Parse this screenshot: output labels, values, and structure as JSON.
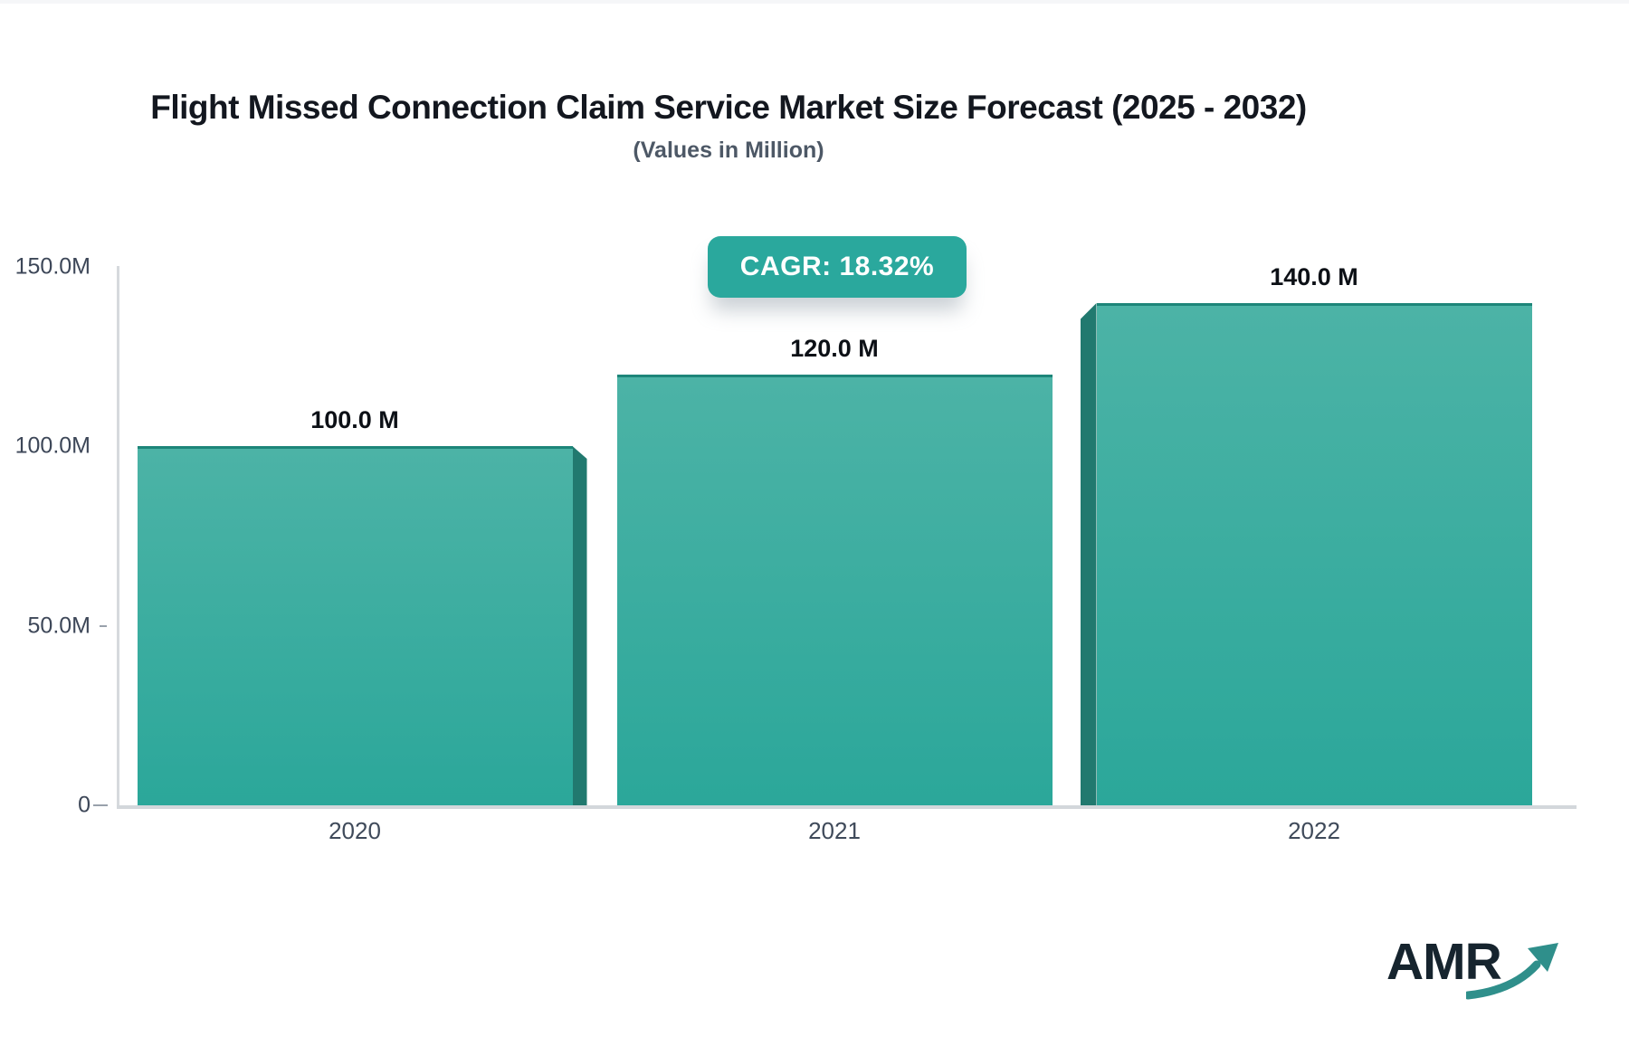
{
  "chart_data": {
    "type": "bar",
    "title": "Flight Missed Connection Claim Service Market Size Forecast (2025 - 2032)",
    "subtitle": "(Values in Million)",
    "categories": [
      "2020",
      "2021",
      "2022"
    ],
    "values": [
      100,
      120,
      140
    ],
    "value_labels": [
      "100.0 M",
      "120.0 M",
      "140.0 M"
    ],
    "xlabel": "",
    "ylabel": "",
    "ylim": [
      0,
      150
    ],
    "y_ticks": [
      {
        "label": "0",
        "value": 0
      },
      {
        "label": "50.0M",
        "value": 50
      },
      {
        "label": "100.0M",
        "value": 100
      },
      {
        "label": "150.0M",
        "value": 150
      }
    ],
    "grid": false,
    "legend": false,
    "annotations": [
      "CAGR: 18.32%"
    ]
  },
  "badge": {
    "label": "CAGR: 18.32%"
  },
  "logo": {
    "text": "AMR",
    "icon": "growth-arrow-icon"
  },
  "colors": {
    "accent_teal": "#2aa89d",
    "bar_gradient_top": "#4cb3a6",
    "bar_gradient_bottom": "#2ba79a",
    "bar_side_shadow": "#21796f",
    "bar_top_edge": "#1d8579",
    "axis_line": "#d6d9dd",
    "title_text": "#13171f",
    "subtitle_text": "#4d5866",
    "tick_text": "#3d4758",
    "logo_text": "#16242e",
    "logo_arrow": "#2f8f8b"
  }
}
